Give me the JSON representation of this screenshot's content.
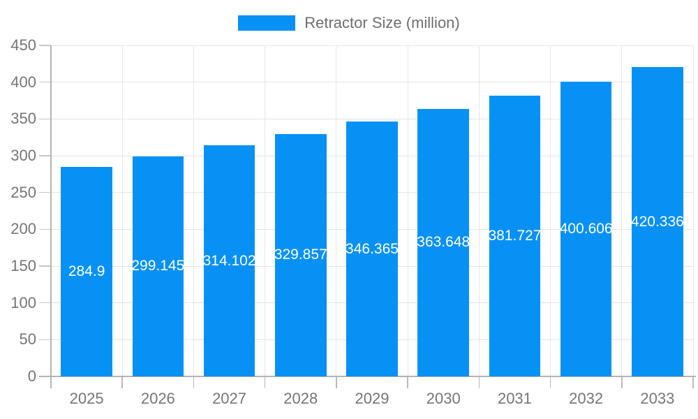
{
  "chart_data": {
    "type": "bar",
    "title": "Retractor Size (million)",
    "legend": {
      "label": "Retractor Size (million)",
      "position": "top-center"
    },
    "categories": [
      "2025",
      "2026",
      "2027",
      "2028",
      "2029",
      "2030",
      "2031",
      "2032",
      "2033"
    ],
    "values": [
      284.9,
      299.145,
      314.102,
      329.857,
      346.365,
      363.648,
      381.727,
      400.606,
      420.336
    ],
    "value_labels": [
      "284.9",
      "299.145",
      "314.102",
      "329.857",
      "346.365",
      "363.648",
      "381.727",
      "400.606",
      "420.336"
    ],
    "xlabel": "",
    "ylabel": "",
    "ylim": [
      0,
      450
    ],
    "ytick_step": 50,
    "yticks": [
      0,
      50,
      100,
      150,
      200,
      250,
      300,
      350,
      400,
      450
    ],
    "grid": "horizontal gridlines plus vertical category-boundary gridlines, ticks outside both axes",
    "colors": {
      "bar": "#0891f5",
      "value_label": "#ffffff",
      "axis_text": "#757575",
      "legend_text": "#6e6e6e",
      "hgrid_line": "#e4e4e4",
      "vgrid_line": "#e7e7e7",
      "axis_line": "#b3b3b3",
      "ytick_line": "#c6c6c6",
      "xtick_line": "#b9b9b9",
      "background": "#ffffff"
    }
  }
}
